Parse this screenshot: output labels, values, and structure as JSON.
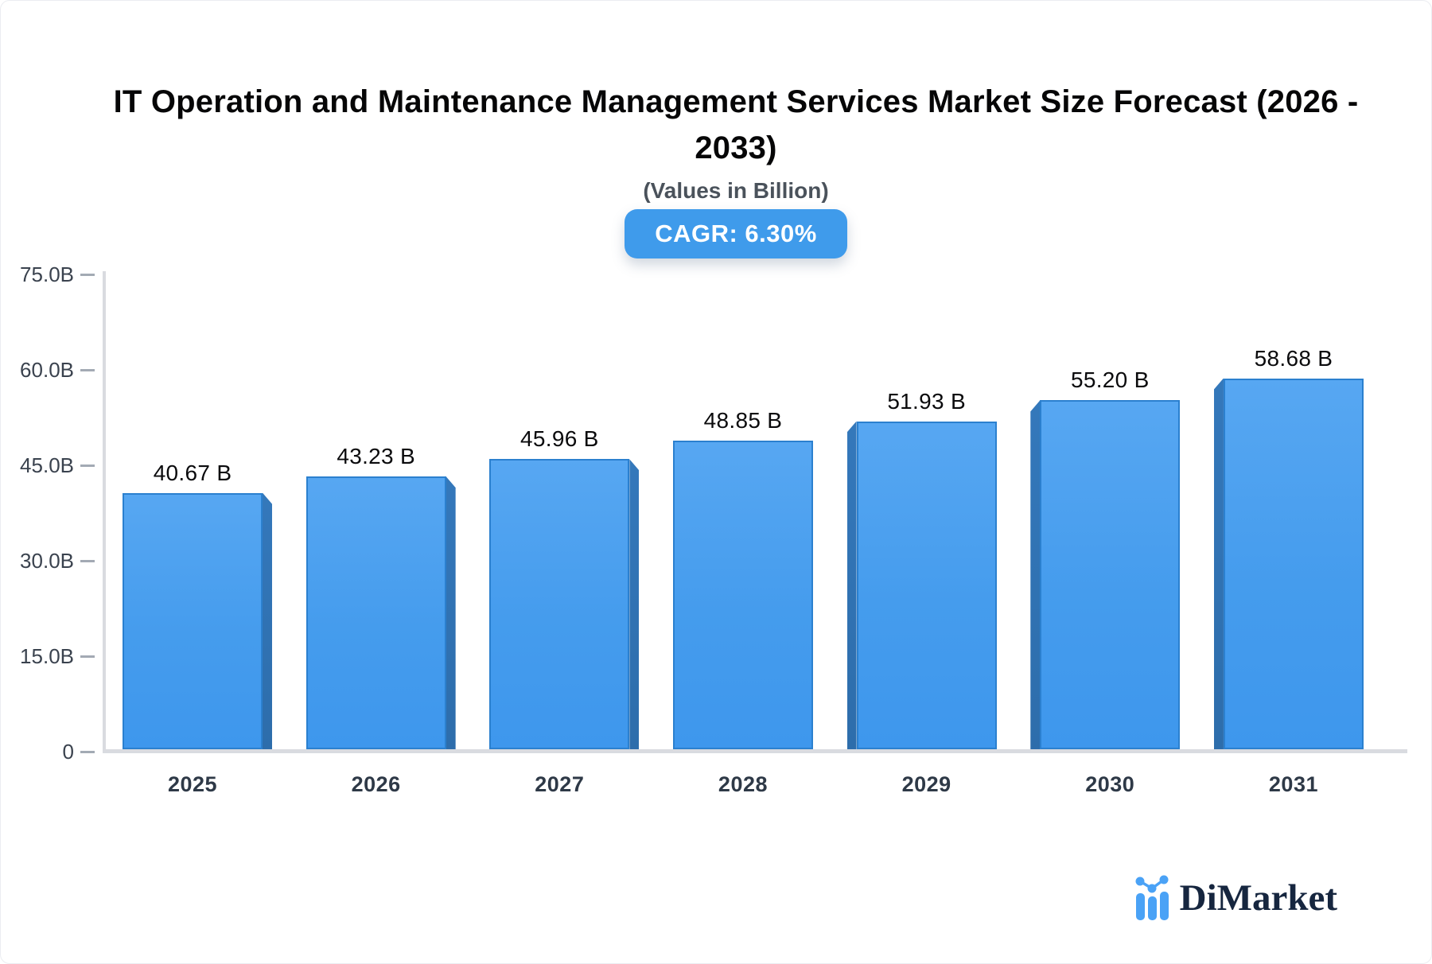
{
  "header": {
    "title_line1": "IT Operation and Maintenance Management Services Market Size Forecast (2026 -",
    "title_line2": "2033)",
    "subtitle": "(Values in Billion)",
    "cagr_label": "CAGR: 6.30%"
  },
  "chart_data": {
    "type": "bar",
    "title": "IT Operation and Maintenance Management Services Market Size Forecast (2026 - 2033)",
    "subtitle": "(Values in Billion)",
    "cagr_percent": "6.30%",
    "categories": [
      "2025",
      "2026",
      "2027",
      "2028",
      "2029",
      "2030",
      "2031"
    ],
    "values": [
      40.67,
      43.23,
      45.96,
      48.85,
      51.93,
      55.2,
      58.68
    ],
    "value_labels": [
      "40.67 B",
      "43.23 B",
      "45.96 B",
      "48.85 B",
      "51.93 B",
      "55.20 B",
      "58.68 B"
    ],
    "unit": "Billion",
    "ylim": [
      0,
      75
    ],
    "ytick_values": [
      0,
      15,
      30,
      45,
      60,
      75
    ],
    "ytick_labels": [
      "0",
      "15.0B",
      "30.0B",
      "45.0B",
      "60.0B",
      "75.0B"
    ],
    "grid": false,
    "legend": false,
    "bar_style": "3d-pseudo-perspective",
    "colors": {
      "bar_face_top": "#57a7f2",
      "bar_face_bottom": "#3e97ed",
      "bar_border": "#2b80cf",
      "bar_side": "#2e73b5",
      "badge_background": "#3f9beb",
      "axis_line": "#d9dbe0",
      "tick_text": "#3a424e"
    }
  },
  "footer": {
    "brand_name": "DiMarket"
  },
  "icons": {
    "brand_icon": "bar-chart-trend-icon"
  }
}
